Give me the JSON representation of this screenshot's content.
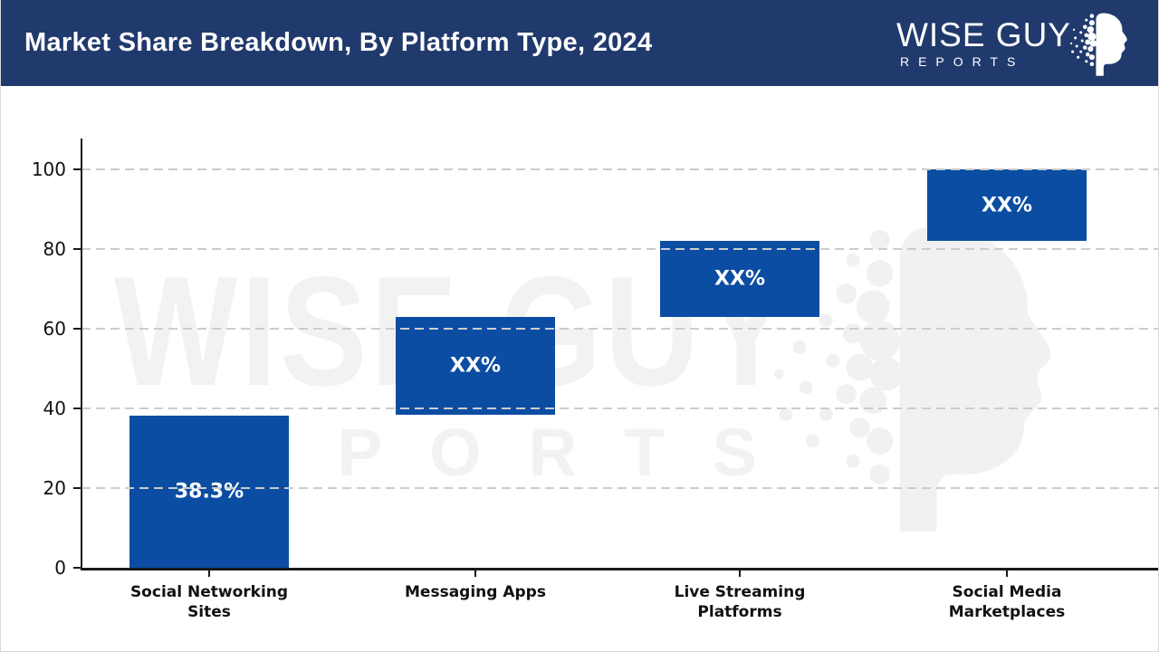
{
  "header": {
    "title": "Market Share Breakdown, By Platform Type, 2024",
    "logo": {
      "line1": "WISE GUY",
      "line2": "REPORTS"
    }
  },
  "watermark": {
    "line1": "WISE GUY",
    "line2": "REPORTS"
  },
  "chart_data": {
    "type": "bar",
    "subtype": "waterfall",
    "title": "Market Share Breakdown, By Platform Type, 2024",
    "categories": [
      "Social Networking\nSites",
      "Messaging Apps",
      "Live Streaming\nPlatforms",
      "Social Media\nMarketplaces"
    ],
    "segments": [
      {
        "label": "38.3%",
        "start": 0,
        "end": 38.3
      },
      {
        "label": "XX%",
        "start": 38.3,
        "end": 63
      },
      {
        "label": "XX%",
        "start": 63,
        "end": 82
      },
      {
        "label": "XX%",
        "start": 82,
        "end": 100
      }
    ],
    "yticks": [
      0,
      20,
      40,
      60,
      80,
      100
    ],
    "ylim": [
      0,
      100
    ],
    "xlabel": "",
    "ylabel": "",
    "grid": "horizontal dashed, drawn over bars",
    "legend": "none",
    "bar_color": "#0b4da2"
  },
  "colors": {
    "header_bg": "#213a6d",
    "bar": "#0b4da2",
    "axis": "#1a1a1a",
    "gridline": "#cccccc",
    "watermark": "#f2f2f2",
    "label_text": "#ffffff"
  }
}
